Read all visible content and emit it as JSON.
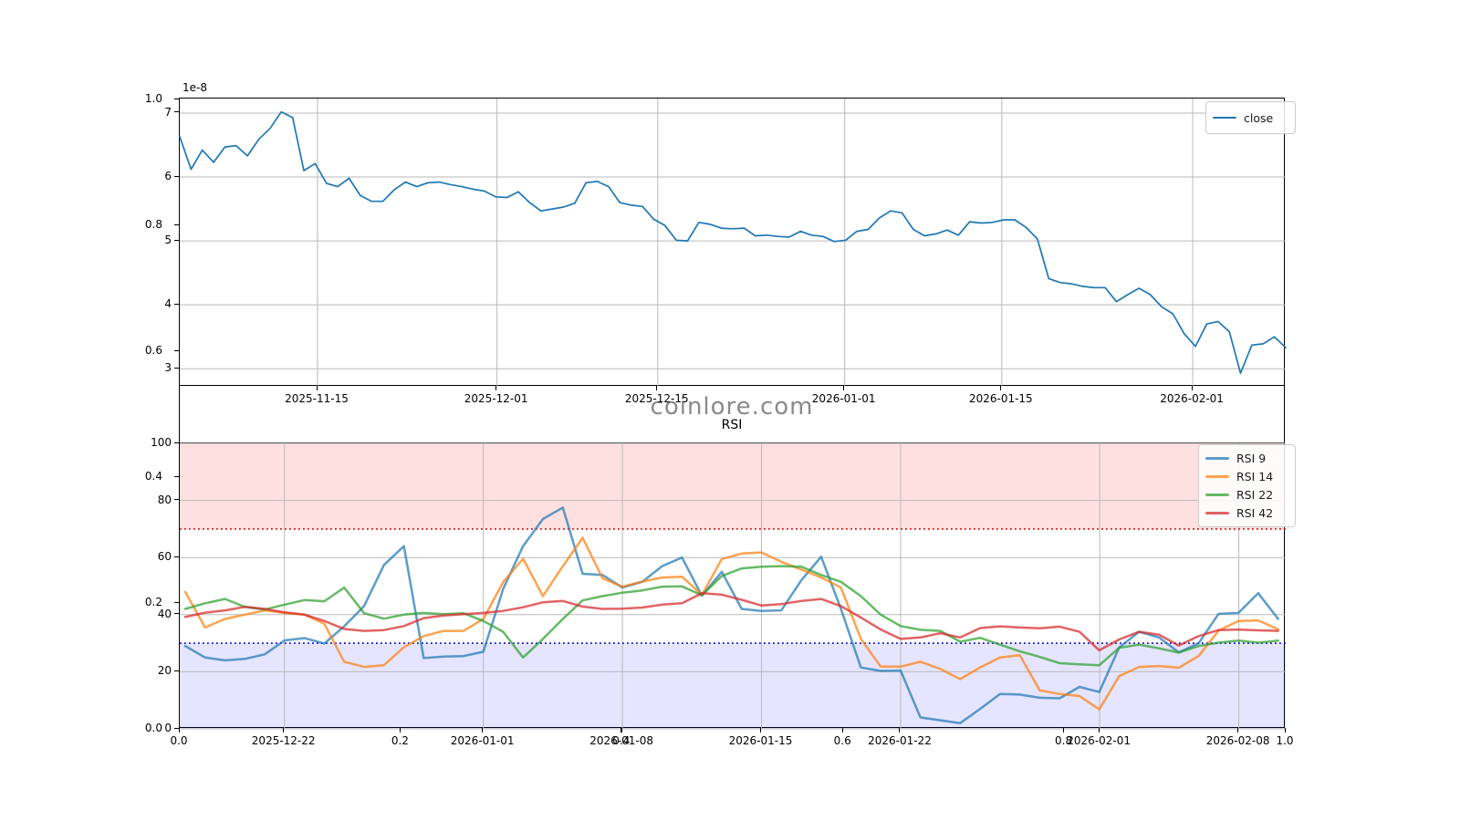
{
  "watermark": {
    "text": "coinlore.com",
    "color": "#8a8a8a"
  },
  "chart_data": {
    "type": "line",
    "title_rsi": "RSI",
    "price_chart": {
      "type": "line",
      "offset_label": "1e-8",
      "ylabel": "",
      "xlim": [
        0,
        98
      ],
      "ylim": [
        2.718,
        7.228
      ],
      "grid": true,
      "legend_position": "upper right",
      "legend_items": [
        {
          "label": "close",
          "color": "#1f77b4",
          "lw": 2
        }
      ],
      "y_ticks": [
        {
          "label": "7",
          "pos": 7
        },
        {
          "label": "6",
          "pos": 6
        },
        {
          "label": "5",
          "pos": 5
        },
        {
          "label": "4",
          "pos": 4
        },
        {
          "label": "3",
          "pos": 3
        }
      ],
      "x_ticks": [
        {
          "label": "2025-11-15",
          "pos": 12.21
        },
        {
          "label": "2025-12-01",
          "pos": 28.11
        },
        {
          "label": "2025-12-15",
          "pos": 42.35
        },
        {
          "label": "2026-01-01",
          "pos": 58.92
        },
        {
          "label": "2026-01-15",
          "pos": 72.84
        },
        {
          "label": "2026-02-01",
          "pos": 89.76
        }
      ],
      "series": [
        {
          "name": "close",
          "color": "#1f77b4",
          "width": 1.7,
          "values": [
            6.63,
            6.12,
            6.42,
            6.23,
            6.47,
            6.49,
            6.33,
            6.59,
            6.76,
            7.02,
            6.93,
            6.1,
            6.21,
            5.9,
            5.85,
            5.98,
            5.71,
            5.62,
            5.62,
            5.8,
            5.92,
            5.85,
            5.91,
            5.92,
            5.88,
            5.85,
            5.81,
            5.78,
            5.69,
            5.68,
            5.77,
            5.6,
            5.47,
            5.5,
            5.53,
            5.59,
            5.91,
            5.93,
            5.85,
            5.6,
            5.56,
            5.54,
            5.34,
            5.24,
            5.01,
            5.0,
            5.29,
            5.26,
            5.2,
            5.19,
            5.2,
            5.08,
            5.09,
            5.07,
            5.06,
            5.15,
            5.09,
            5.07,
            4.99,
            5.01,
            5.15,
            5.18,
            5.36,
            5.47,
            5.44,
            5.18,
            5.08,
            5.11,
            5.17,
            5.09,
            5.3,
            5.28,
            5.29,
            5.33,
            5.33,
            5.21,
            5.03,
            4.41,
            4.35,
            4.33,
            4.29,
            4.27,
            4.27,
            4.05,
            4.16,
            4.26,
            4.16,
            3.97,
            3.86,
            3.55,
            3.35,
            3.7,
            3.74,
            3.58,
            2.93,
            3.37,
            3.39,
            3.5,
            3.33
          ]
        }
      ]
    },
    "rsi_chart": {
      "type": "line",
      "title": "RSI",
      "xlim": [
        -0.276,
        55.38
      ],
      "ylim": [
        0,
        100
      ],
      "grid": true,
      "legend_position": "upper right",
      "overbought_level": 70,
      "oversold_level": 30,
      "regions": [
        {
          "from": 70,
          "to": 100,
          "color": "rgba(255,0,0,0.12)"
        },
        {
          "from": 0,
          "to": 30,
          "color": "rgba(0,0,255,0.10)"
        }
      ],
      "hlines": [
        {
          "pos": 70,
          "color": "#e00000"
        },
        {
          "pos": 30,
          "color": "#0000cc"
        }
      ],
      "legend_items": [
        {
          "label": "RSI 9",
          "color": "rgba(31,119,180,0.72)",
          "lw": 3
        },
        {
          "label": "RSI 14",
          "color": "rgba(255,127,14,0.72)",
          "lw": 3
        },
        {
          "label": "RSI 22",
          "color": "rgba(44,160,44,0.72)",
          "lw": 3
        },
        {
          "label": "RSI 42",
          "color": "rgba(214,39,40,0.72)",
          "lw": 3
        }
      ],
      "y_ticks": [
        {
          "label": "100",
          "pos": 100
        },
        {
          "label": "80",
          "pos": 80
        },
        {
          "label": "60",
          "pos": 60
        },
        {
          "label": "40",
          "pos": 40
        },
        {
          "label": "20",
          "pos": 20
        },
        {
          "label": "0",
          "pos": 0
        }
      ],
      "x_ticks": [
        {
          "label": "2025-12-22",
          "pos": 4.99
        },
        {
          "label": "2026-01-01",
          "pos": 15.0
        },
        {
          "label": "2026-01-08",
          "pos": 22.0
        },
        {
          "label": "2026-01-15",
          "pos": 29.0
        },
        {
          "label": "2026-01-22",
          "pos": 36.0
        },
        {
          "label": "2026-02-01",
          "pos": 46.02
        },
        {
          "label": "2026-02-08",
          "pos": 53.02
        }
      ],
      "series": [
        {
          "name": "RSI 9",
          "color": "rgba(31,119,180,0.72)",
          "width": 2.5,
          "values": [
            29.0,
            25.0,
            24.0,
            24.5,
            26.1,
            31.0,
            31.8,
            29.9,
            35.9,
            43.0,
            57.4,
            64.0,
            24.8,
            25.3,
            25.5,
            27.0,
            49.0,
            64.0,
            73.5,
            77.5,
            54.3,
            53.9,
            49.5,
            51.5,
            57.0,
            60.0,
            46.6,
            55.0,
            42.0,
            41.3,
            41.5,
            52.0,
            60.3,
            42.0,
            21.5,
            20.3,
            20.4,
            4.0,
            3.0,
            2.0,
            7.0,
            12.2,
            12.0,
            10.9,
            10.7,
            14.7,
            12.9,
            28.5,
            34.0,
            32.0,
            26.8,
            30.0,
            40.3,
            40.6,
            47.5,
            38.5
          ]
        },
        {
          "name": "RSI 14",
          "color": "rgba(255,127,14,0.72)",
          "width": 2.5,
          "values": [
            48.0,
            35.5,
            38.5,
            40.0,
            41.5,
            40.6,
            40.0,
            36.8,
            23.5,
            21.7,
            22.3,
            28.6,
            32.5,
            34.3,
            34.3,
            38.5,
            51.4,
            59.6,
            46.5,
            57.0,
            66.9,
            52.7,
            49.8,
            51.6,
            53.0,
            53.3,
            47.0,
            59.5,
            61.4,
            61.8,
            58.5,
            55.8,
            53.0,
            49.5,
            31.5,
            21.8,
            21.8,
            23.5,
            21.0,
            17.4,
            21.5,
            25.0,
            25.8,
            13.5,
            12.2,
            11.5,
            6.8,
            18.5,
            21.7,
            22.0,
            21.4,
            25.5,
            34.4,
            37.8,
            38.0,
            34.9
          ]
        },
        {
          "name": "RSI 22",
          "color": "rgba(44,160,44,0.72)",
          "width": 2.5,
          "values": [
            42.0,
            44.0,
            45.5,
            42.7,
            41.8,
            43.5,
            45.1,
            44.7,
            49.5,
            40.5,
            38.6,
            40.0,
            40.6,
            40.2,
            40.5,
            37.8,
            34.0,
            25.0,
            31.5,
            38.5,
            45.0,
            46.5,
            47.7,
            48.5,
            49.8,
            49.9,
            46.8,
            53.5,
            56.2,
            56.8,
            57.0,
            56.8,
            53.9,
            51.5,
            46.5,
            40.0,
            36.0,
            34.7,
            34.3,
            30.5,
            31.9,
            29.5,
            27.2,
            25.2,
            23.0,
            22.6,
            22.3,
            28.4,
            29.5,
            28.2,
            26.7,
            29.0,
            30.2,
            30.9,
            30.2,
            30.9
          ]
        },
        {
          "name": "RSI 42",
          "color": "rgba(214,39,40,0.72)",
          "width": 2.5,
          "values": [
            39.2,
            40.7,
            41.5,
            42.7,
            42.0,
            40.8,
            40.0,
            37.8,
            35.0,
            34.3,
            34.6,
            36.0,
            38.8,
            39.7,
            40.2,
            40.6,
            41.3,
            42.6,
            44.3,
            44.8,
            42.8,
            42.0,
            42.1,
            42.5,
            43.5,
            44.0,
            47.5,
            47.0,
            45.2,
            43.2,
            43.7,
            44.8,
            45.5,
            43.0,
            39.0,
            34.8,
            31.5,
            32.0,
            33.5,
            32.0,
            35.3,
            35.9,
            35.5,
            35.2,
            35.8,
            34.0,
            27.5,
            31.3,
            34.0,
            33.0,
            29.2,
            32.5,
            34.6,
            34.8,
            34.5,
            34.3
          ]
        }
      ]
    },
    "outer_axes": {
      "type": "line",
      "xlim": [
        0,
        1
      ],
      "ylim": [
        0,
        1
      ],
      "y_ticks": [
        {
          "label": "1.0",
          "pos": 1.0
        },
        {
          "label": "0.8",
          "pos": 0.8
        },
        {
          "label": "0.6",
          "pos": 0.6
        },
        {
          "label": "0.4",
          "pos": 0.4
        },
        {
          "label": "0.2",
          "pos": 0.2
        },
        {
          "label": "0.0",
          "pos": 0.0
        }
      ],
      "x_ticks": [
        {
          "label": "0.0",
          "pos": 0.0
        },
        {
          "label": "0.2",
          "pos": 0.2
        },
        {
          "label": "0.4",
          "pos": 0.4
        },
        {
          "label": "0.6",
          "pos": 0.6
        },
        {
          "label": "0.8",
          "pos": 0.8
        },
        {
          "label": "1.0",
          "pos": 1.0
        }
      ],
      "series": []
    }
  }
}
